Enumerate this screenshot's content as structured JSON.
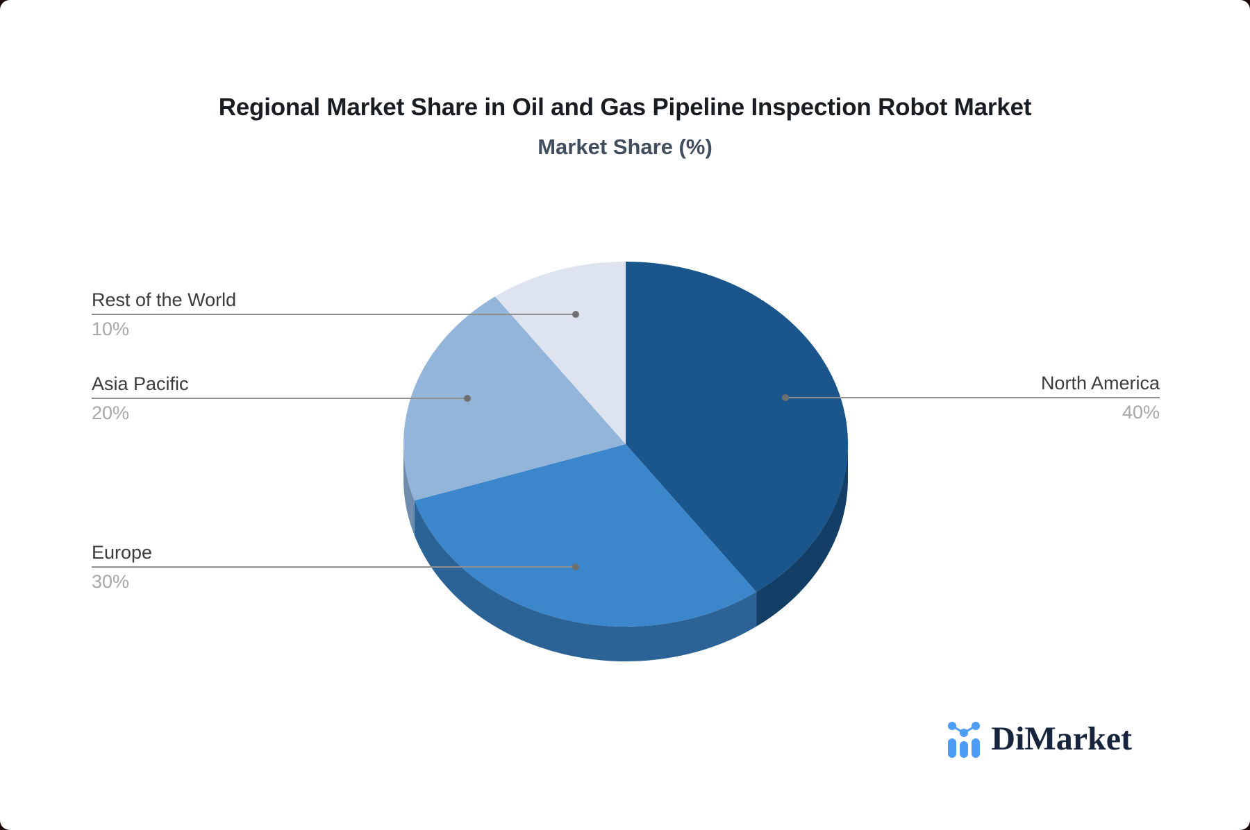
{
  "chart": {
    "title": "Regional Market Share in Oil and Gas Pipeline Inspection Robot Market",
    "subtitle": "Market Share (%)"
  },
  "chart_data": {
    "type": "pie",
    "style": "3d",
    "title": "Regional Market Share in Oil and Gas Pipeline Inspection Robot Market",
    "subtitle": "Market Share (%)",
    "unit": "%",
    "categories": [
      "North America",
      "Europe",
      "Asia Pacific",
      "Rest of the World"
    ],
    "values": [
      40,
      30,
      20,
      10
    ],
    "value_labels": [
      "40%",
      "30%",
      "20%",
      "10%"
    ],
    "colors": [
      "#1A568C",
      "#3C87CC",
      "#93B5DA",
      "#DEE4EF"
    ],
    "wall_colors": [
      "#133E66",
      "#2B6396",
      "#6F8CAC",
      "#C4CDDD"
    ],
    "start_angle_deg": 90,
    "direction": "clockwise",
    "legend_position": "callout-labels",
    "leader_line_color": "#8f8f8f",
    "leader_dot_color": "#6f6f6f"
  },
  "callouts": [
    {
      "name": "North America",
      "value": "40%",
      "side": "right"
    },
    {
      "name": "Europe",
      "value": "30%",
      "side": "left"
    },
    {
      "name": "Asia Pacific",
      "value": "20%",
      "side": "left"
    },
    {
      "name": "Rest of the World",
      "value": "10%",
      "side": "left"
    }
  ],
  "brand": {
    "logo_text": "DiMarket",
    "logo_blue": "#4D9DF7"
  }
}
